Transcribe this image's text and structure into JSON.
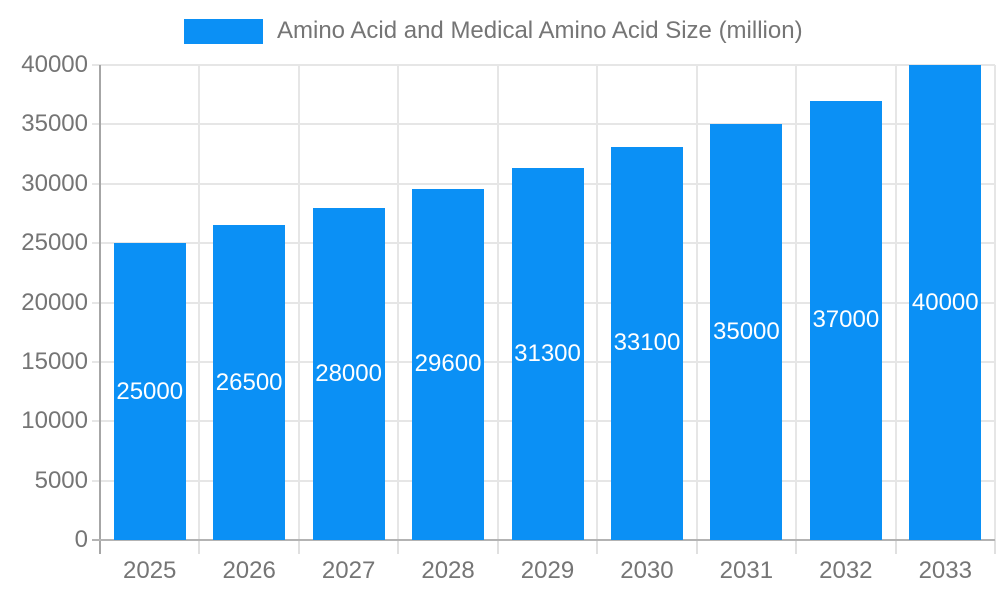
{
  "chart_data": {
    "type": "bar",
    "title": "Amino Acid and Medical Amino Acid Size (million)",
    "categories": [
      "2025",
      "2026",
      "2027",
      "2028",
      "2029",
      "2030",
      "2031",
      "2032",
      "2033"
    ],
    "values": [
      25000,
      26500,
      28000,
      29600,
      31300,
      33100,
      35000,
      37000,
      40000
    ],
    "xlabel": "",
    "ylabel": "",
    "ylim": [
      0,
      40000
    ],
    "yticks": [
      0,
      5000,
      10000,
      15000,
      20000,
      25000,
      30000,
      35000,
      40000
    ],
    "grid": true,
    "legend_position": "top",
    "bar_color": "#0b90f5",
    "bar_label_color": "#ffffff",
    "axis_label_color": "#757575",
    "gridline_color": "#e6e6e6",
    "axis_line_color": "#a6a6a6",
    "baseline_color": "#b3b3b3",
    "category_tick_color": "#e0e0e0"
  }
}
